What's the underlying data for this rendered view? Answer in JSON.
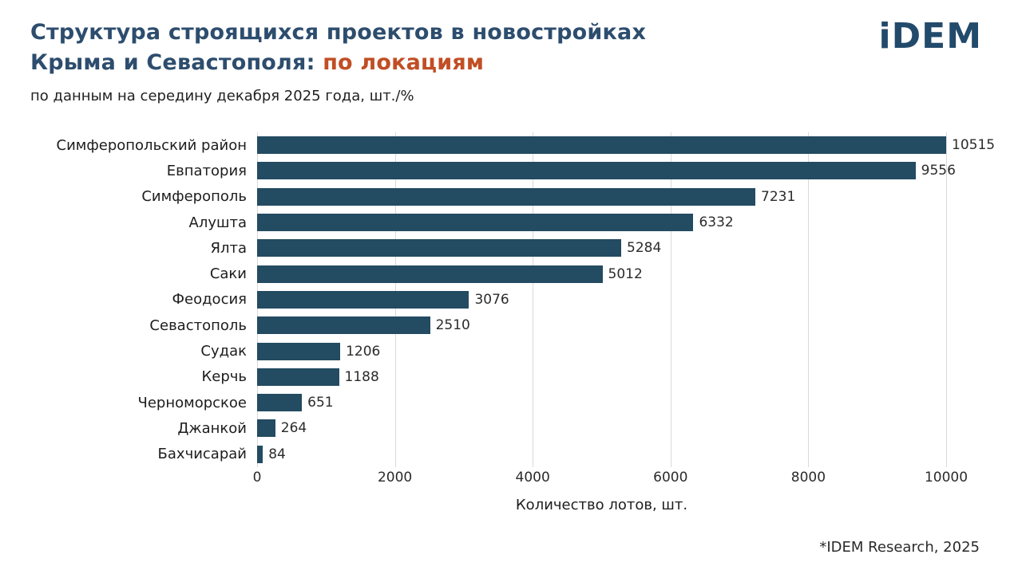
{
  "header": {
    "title_line1": "Структура строящихся проектов в новостройках",
    "title_line2_dark": "Крыма и Севастополя:",
    "title_line2_accent": "по локациям",
    "subtitle": "по данным на середину декабря 2025 года, шт./%",
    "logo_text": "iDEM"
  },
  "colors": {
    "title_navy": "#2d4d6e",
    "accent_orange": "#c14e24",
    "bar_fill": "#234b61",
    "logo_navy": "#224a6b",
    "gridline": "#d9d9d9"
  },
  "chart_data": {
    "type": "bar",
    "orientation": "horizontal",
    "categories": [
      "Симферопольский район",
      "Евпатория",
      "Симферополь",
      "Алушта",
      "Ялта",
      "Саки",
      "Феодосия",
      "Севастополь",
      "Судак",
      "Керчь",
      "Черноморское",
      "Джанкой",
      "Бахчисарай"
    ],
    "values": [
      10515,
      9556,
      7231,
      6332,
      5284,
      5012,
      3076,
      2510,
      1206,
      1188,
      651,
      264,
      84
    ],
    "value_labels": [
      "10515",
      "9556",
      "7231",
      "6332",
      "5284",
      "5012",
      "3076",
      "2510",
      "1206",
      "1188",
      "651",
      "264",
      "84"
    ],
    "title": "Структура строящихся проектов в новостройках Крыма и Севастополя: по локациям",
    "xlabel": "Количество лотов, шт.",
    "ylabel": "",
    "xticks": [
      0,
      2000,
      4000,
      6000,
      8000,
      10000
    ],
    "xlim": [
      0,
      10000
    ],
    "grid": "vertical-lines",
    "legend": "none",
    "note": "first bar (10515) is clipped at axis max 10000"
  },
  "footer": {
    "source": "*IDEM Research, 2025"
  }
}
